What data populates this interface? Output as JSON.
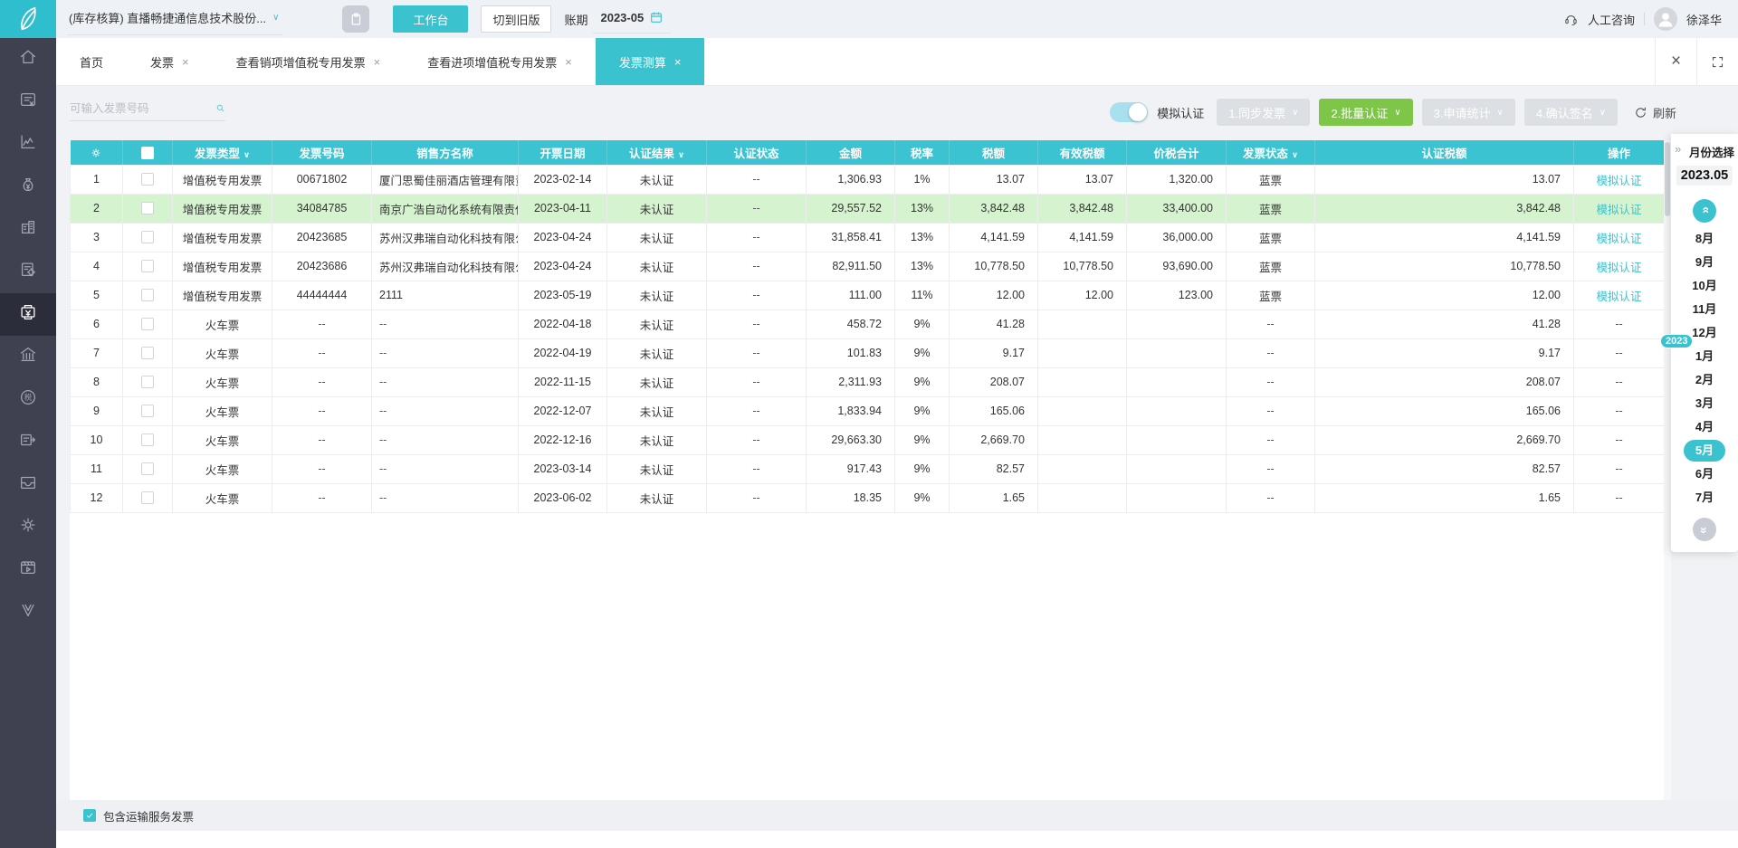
{
  "colors": {
    "accent": "#3bc2cf",
    "green": "#7ec648",
    "header_teal": "#3bc3d1",
    "highlight_row": "#d6f3d0",
    "sidebar_bg": "#3f4150"
  },
  "icons": {
    "close": "×",
    "chevron_down": "∨",
    "collapse": "»",
    "double_chevron": "»"
  },
  "topbar": {
    "company": "(库存核算) 直播畅捷通信息技术股份...",
    "workbench_label": "工作台",
    "switch_old_label": "切到旧版",
    "period_label": "账期",
    "period_value": "2023-05",
    "support_label": "人工咨询",
    "user_name": "徐泽华"
  },
  "tabbar": {
    "tabs": [
      {
        "label": "首页",
        "closable": false,
        "active": false
      },
      {
        "label": "发票",
        "closable": true,
        "active": false
      },
      {
        "label": "查看销项增值税专用发票",
        "closable": true,
        "active": false
      },
      {
        "label": "查看进项增值税专用发票",
        "closable": true,
        "active": false
      },
      {
        "label": "发票测算",
        "closable": true,
        "active": true
      }
    ]
  },
  "toolbar": {
    "search_placeholder": "可输入发票号码",
    "toggle_label": "模拟认证",
    "toggle_on": true,
    "action_buttons": [
      {
        "label": "1.同步发票",
        "style": "gray"
      },
      {
        "label": "2.批量认证",
        "style": "green"
      },
      {
        "label": "3.申请统计",
        "style": "gray"
      },
      {
        "label": "4.确认签名",
        "style": "gray"
      }
    ],
    "refresh_label": "刷新"
  },
  "table": {
    "headers": [
      {
        "label": "发票类型",
        "sortable": true
      },
      {
        "label": "发票号码",
        "sortable": false
      },
      {
        "label": "销售方名称",
        "sortable": false
      },
      {
        "label": "开票日期",
        "sortable": false
      },
      {
        "label": "认证结果",
        "sortable": true
      },
      {
        "label": "认证状态",
        "sortable": false
      },
      {
        "label": "金额",
        "sortable": false
      },
      {
        "label": "税率",
        "sortable": false
      },
      {
        "label": "税额",
        "sortable": false
      },
      {
        "label": "有效税额",
        "sortable": false
      },
      {
        "label": "价税合计",
        "sortable": false
      },
      {
        "label": "发票状态",
        "sortable": true
      },
      {
        "label": "认证税额",
        "sortable": false
      },
      {
        "label": "操作",
        "sortable": false
      }
    ],
    "rows": [
      {
        "num": "1",
        "type": "增值税专用发票",
        "no": "00671802",
        "seller": "厦门思蜀佳丽酒店管理有限责",
        "date": "2023-02-14",
        "result": "未认证",
        "status": "--",
        "amount": "1,306.93",
        "rate": "1%",
        "tax": "13.07",
        "valid_tax": "13.07",
        "total": "1,320.00",
        "inv_status": "蓝票",
        "auth_tax": "13.07",
        "action": "模拟认证",
        "highlight": false
      },
      {
        "num": "2",
        "type": "增值税专用发票",
        "no": "34084785",
        "seller": "南京广浩自动化系统有限责任",
        "date": "2023-04-11",
        "result": "未认证",
        "status": "--",
        "amount": "29,557.52",
        "rate": "13%",
        "tax": "3,842.48",
        "valid_tax": "3,842.48",
        "total": "33,400.00",
        "inv_status": "蓝票",
        "auth_tax": "3,842.48",
        "action": "模拟认证",
        "highlight": true
      },
      {
        "num": "3",
        "type": "增值税专用发票",
        "no": "20423685",
        "seller": "苏州汉弗瑞自动化科技有限公",
        "date": "2023-04-24",
        "result": "未认证",
        "status": "--",
        "amount": "31,858.41",
        "rate": "13%",
        "tax": "4,141.59",
        "valid_tax": "4,141.59",
        "total": "36,000.00",
        "inv_status": "蓝票",
        "auth_tax": "4,141.59",
        "action": "模拟认证",
        "highlight": false
      },
      {
        "num": "4",
        "type": "增值税专用发票",
        "no": "20423686",
        "seller": "苏州汉弗瑞自动化科技有限公",
        "date": "2023-04-24",
        "result": "未认证",
        "status": "--",
        "amount": "82,911.50",
        "rate": "13%",
        "tax": "10,778.50",
        "valid_tax": "10,778.50",
        "total": "93,690.00",
        "inv_status": "蓝票",
        "auth_tax": "10,778.50",
        "action": "模拟认证",
        "highlight": false
      },
      {
        "num": "5",
        "type": "增值税专用发票",
        "no": "44444444",
        "seller": "2111",
        "date": "2023-05-19",
        "result": "未认证",
        "status": "--",
        "amount": "111.00",
        "rate": "11%",
        "tax": "12.00",
        "valid_tax": "12.00",
        "total": "123.00",
        "inv_status": "蓝票",
        "auth_tax": "12.00",
        "action": "模拟认证",
        "highlight": false
      },
      {
        "num": "6",
        "type": "火车票",
        "no": "--",
        "seller": "--",
        "date": "2022-04-18",
        "result": "未认证",
        "status": "--",
        "amount": "458.72",
        "rate": "9%",
        "tax": "41.28",
        "valid_tax": "",
        "total": "",
        "inv_status": "--",
        "auth_tax": "41.28",
        "action": "--",
        "highlight": false
      },
      {
        "num": "7",
        "type": "火车票",
        "no": "--",
        "seller": "--",
        "date": "2022-04-19",
        "result": "未认证",
        "status": "--",
        "amount": "101.83",
        "rate": "9%",
        "tax": "9.17",
        "valid_tax": "",
        "total": "",
        "inv_status": "--",
        "auth_tax": "9.17",
        "action": "--",
        "highlight": false
      },
      {
        "num": "8",
        "type": "火车票",
        "no": "--",
        "seller": "--",
        "date": "2022-11-15",
        "result": "未认证",
        "status": "--",
        "amount": "2,311.93",
        "rate": "9%",
        "tax": "208.07",
        "valid_tax": "",
        "total": "",
        "inv_status": "--",
        "auth_tax": "208.07",
        "action": "--",
        "highlight": false
      },
      {
        "num": "9",
        "type": "火车票",
        "no": "--",
        "seller": "--",
        "date": "2022-12-07",
        "result": "未认证",
        "status": "--",
        "amount": "1,833.94",
        "rate": "9%",
        "tax": "165.06",
        "valid_tax": "",
        "total": "",
        "inv_status": "--",
        "auth_tax": "165.06",
        "action": "--",
        "highlight": false
      },
      {
        "num": "10",
        "type": "火车票",
        "no": "--",
        "seller": "--",
        "date": "2022-12-16",
        "result": "未认证",
        "status": "--",
        "amount": "29,663.30",
        "rate": "9%",
        "tax": "2,669.70",
        "valid_tax": "",
        "total": "",
        "inv_status": "--",
        "auth_tax": "2,669.70",
        "action": "--",
        "highlight": false
      },
      {
        "num": "11",
        "type": "火车票",
        "no": "--",
        "seller": "--",
        "date": "2023-03-14",
        "result": "未认证",
        "status": "--",
        "amount": "917.43",
        "rate": "9%",
        "tax": "82.57",
        "valid_tax": "",
        "total": "",
        "inv_status": "--",
        "auth_tax": "82.57",
        "action": "--",
        "highlight": false
      },
      {
        "num": "12",
        "type": "火车票",
        "no": "--",
        "seller": "--",
        "date": "2023-06-02",
        "result": "未认证",
        "status": "--",
        "amount": "18.35",
        "rate": "9%",
        "tax": "1.65",
        "valid_tax": "",
        "total": "",
        "inv_status": "--",
        "auth_tax": "1.65",
        "action": "--",
        "highlight": false
      }
    ]
  },
  "month_panel": {
    "title": "月份选择",
    "current": "2023.05",
    "year_badge": "2023",
    "months": [
      "8月",
      "9月",
      "10月",
      "11月",
      "12月",
      "1月",
      "2月",
      "3月",
      "4月",
      "5月",
      "6月",
      "7月"
    ],
    "active_month": "5月"
  },
  "footer": {
    "include_transport_label": "包含运输服务发票",
    "checked": true
  },
  "sidebar": {
    "items": [
      {
        "icon": "home",
        "active": false
      },
      {
        "icon": "voucher",
        "active": false
      },
      {
        "icon": "ledger",
        "active": false
      },
      {
        "icon": "funds",
        "active": false
      },
      {
        "icon": "company",
        "active": false
      },
      {
        "icon": "report",
        "active": false
      },
      {
        "icon": "invoice",
        "active": true
      },
      {
        "icon": "assets",
        "active": false
      },
      {
        "icon": "tax",
        "active": false
      },
      {
        "icon": "carryover",
        "active": false
      },
      {
        "icon": "archive",
        "active": false
      },
      {
        "icon": "settings",
        "active": false
      },
      {
        "icon": "tutorial",
        "active": false
      },
      {
        "icon": "v-logo",
        "active": false
      }
    ]
  }
}
